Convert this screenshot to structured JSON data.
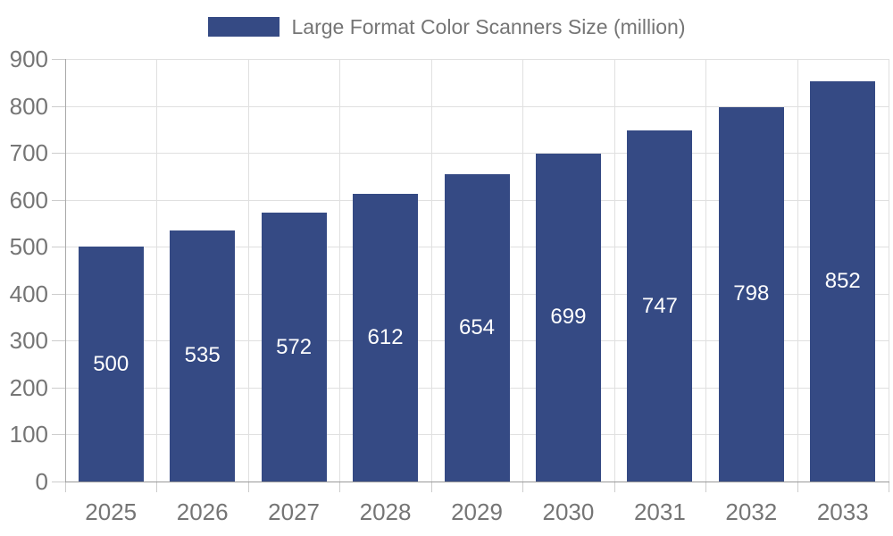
{
  "chart_data": {
    "type": "bar",
    "title": "Large Format Color Scanners Size (million)",
    "legend": [
      "Large Format Color Scanners Size (million)"
    ],
    "legend_position": "top-center",
    "categories": [
      "2025",
      "2026",
      "2027",
      "2028",
      "2029",
      "2030",
      "2031",
      "2032",
      "2033"
    ],
    "values": [
      500,
      535,
      572,
      612,
      654,
      699,
      747,
      798,
      852
    ],
    "xlabel": "",
    "ylabel": "",
    "ylim": [
      0,
      900
    ],
    "y_ticks": [
      0,
      100,
      200,
      300,
      400,
      500,
      600,
      700,
      800,
      900
    ],
    "grid": true,
    "colors": {
      "bar": "#354a84",
      "bar_value_label": "#ffffff",
      "axis_text": "#757575",
      "gridline": "#e0e0e0",
      "y_axis_line": "#aaaaaa",
      "x_axis_line": "#999999",
      "tick_mark": "#cccccc"
    }
  }
}
